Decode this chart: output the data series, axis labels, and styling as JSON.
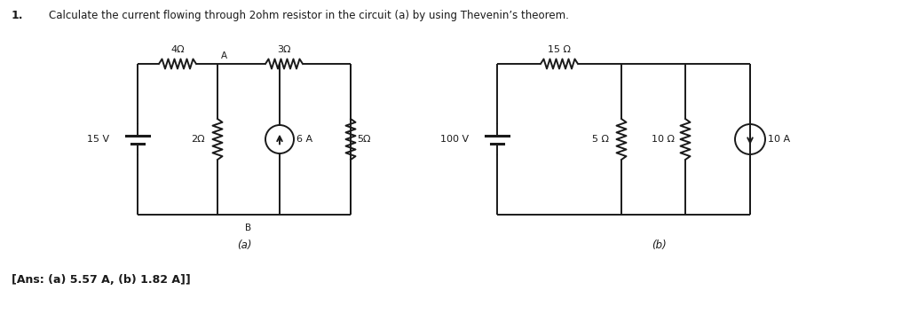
{
  "title_num": "1.",
  "title_text": "Calculate the current flowing through 2ohm resistor in the circuit (a) by using Thevenin’s theorem.",
  "answer": "[Ans: (a) 5.57 A, (b) 1.82 A]]",
  "bg_color": "#ffffff",
  "text_color": "#1a1a1a",
  "circuit_a_label": "(a)",
  "circuit_b_label": "(b)",
  "R1": "4Ω",
  "R2": "2Ω",
  "R3": "3Ω",
  "R4": "5Ω",
  "V1": "15 V",
  "I1": "6 A",
  "node_A": "A",
  "node_B": "B",
  "R5": "15 Ω",
  "R6": "5 Ω",
  "R7": "10 Ω",
  "V2": "100 V",
  "I2": "10 A"
}
